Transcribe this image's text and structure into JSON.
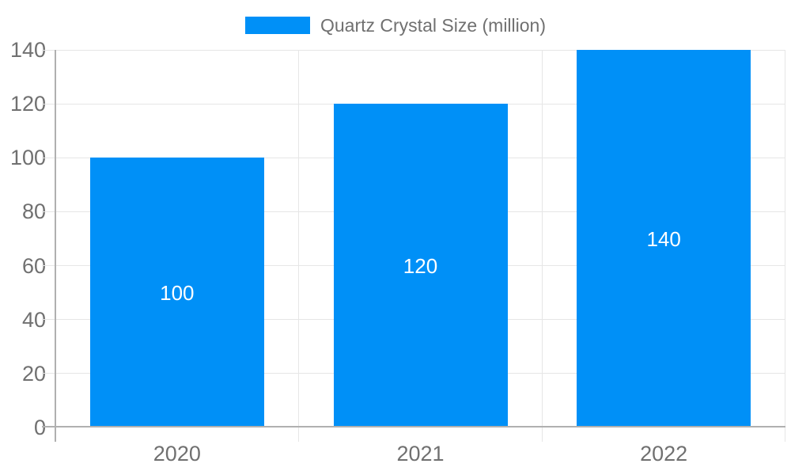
{
  "chart_data": {
    "type": "bar",
    "title": "Quartz Crystal Size (million)",
    "legend": {
      "label": "Quartz Crystal Size (million)",
      "position": "top-center",
      "swatch": "filled-rect"
    },
    "categories": [
      "2020",
      "2021",
      "2022"
    ],
    "series": [
      {
        "name": "Quartz Crystal Size (million)",
        "values": [
          100,
          120,
          140
        ]
      }
    ],
    "bar_value_labels": [
      "100",
      "120",
      "140"
    ],
    "bar_value_label_position": "inside-center",
    "xlabel": "",
    "ylabel": "",
    "ylim": [
      0,
      140
    ],
    "yticks": [
      0,
      20,
      40,
      60,
      80,
      100,
      120,
      140
    ],
    "grid": true,
    "vertical_column_boundaries": true,
    "colors": {
      "bar": "#0090f7",
      "axis_text": "#707070",
      "legend_text": "#707070",
      "grid_line": "#e6e6e6",
      "axis_line": "#b0b0b0",
      "bar_label_text": "#ffffff",
      "background": "#ffffff"
    }
  }
}
